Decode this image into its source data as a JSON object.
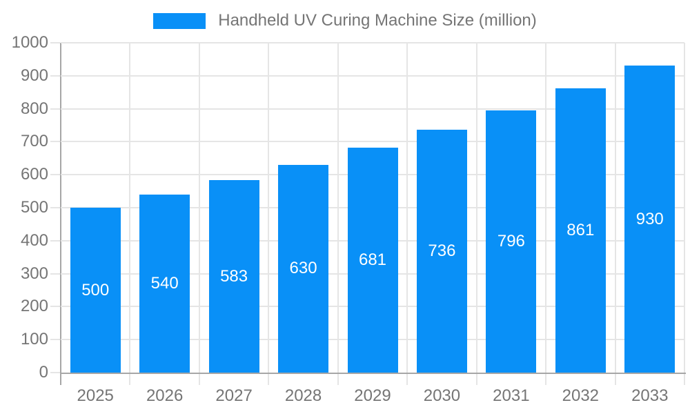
{
  "legend": {
    "label": "Handheld UV Curing Machine Size (million)"
  },
  "chart_data": {
    "type": "bar",
    "title": "Handheld UV Curing Machine Size (million)",
    "series_name": "Handheld UV Curing Machine Size (million)",
    "categories": [
      "2025",
      "2026",
      "2027",
      "2028",
      "2029",
      "2030",
      "2031",
      "2032",
      "2033"
    ],
    "values": [
      500,
      540,
      583,
      630,
      681,
      736,
      796,
      861,
      930
    ],
    "xlabel": "",
    "ylabel": "",
    "ylim": [
      0,
      1000
    ],
    "yticks": [
      0,
      100,
      200,
      300,
      400,
      500,
      600,
      700,
      800,
      900,
      1000
    ],
    "grid": true,
    "legend_position": "top",
    "value_label_position": "inside-center",
    "colors": {
      "bar": "#0990f7",
      "grid": "#e5e5e5",
      "axis": "#a6a6a6",
      "text": "#757575",
      "value_text": "#ffffff",
      "background": "#ffffff"
    }
  }
}
